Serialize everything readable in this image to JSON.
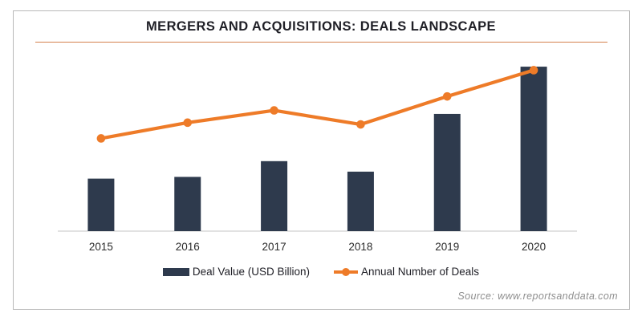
{
  "header": {
    "title": "MERGERS AND ACQUISITIONS: DEALS LANDSCAPE"
  },
  "footer": {
    "source": "Source: www.reportsanddata.com"
  },
  "chart_data": {
    "type": "combo",
    "title": "MERGERS AND ACQUISITIONS: DEALS LANDSCAPE",
    "categories": [
      "2015",
      "2016",
      "2017",
      "2018",
      "2019",
      "2020"
    ],
    "series": [
      {
        "name": "Deal Value (USD Billion)",
        "type": "bar",
        "color": "#2e3a4d",
        "values": [
          30,
          31,
          40,
          34,
          67,
          94
        ]
      },
      {
        "name": "Annual Number of Deals",
        "type": "line",
        "color": "#ee7b28",
        "values": [
          53,
          62,
          69,
          61,
          77,
          92
        ]
      }
    ],
    "xlabel": "",
    "ylabel": "",
    "value_axis": {
      "min": 0,
      "max": 100,
      "visible": false
    },
    "grid": false,
    "legend_position": "bottom"
  },
  "colors": {
    "bar": "#2e3a4d",
    "line": "#ee7b28",
    "axis_line": "#d9d9d9",
    "frame_border": "#b8b8b8",
    "title_divider": "#d4814e",
    "title_text": "#1f1f26",
    "tick_label": "#2b2b2b",
    "source_text": "#8f8f8f"
  }
}
